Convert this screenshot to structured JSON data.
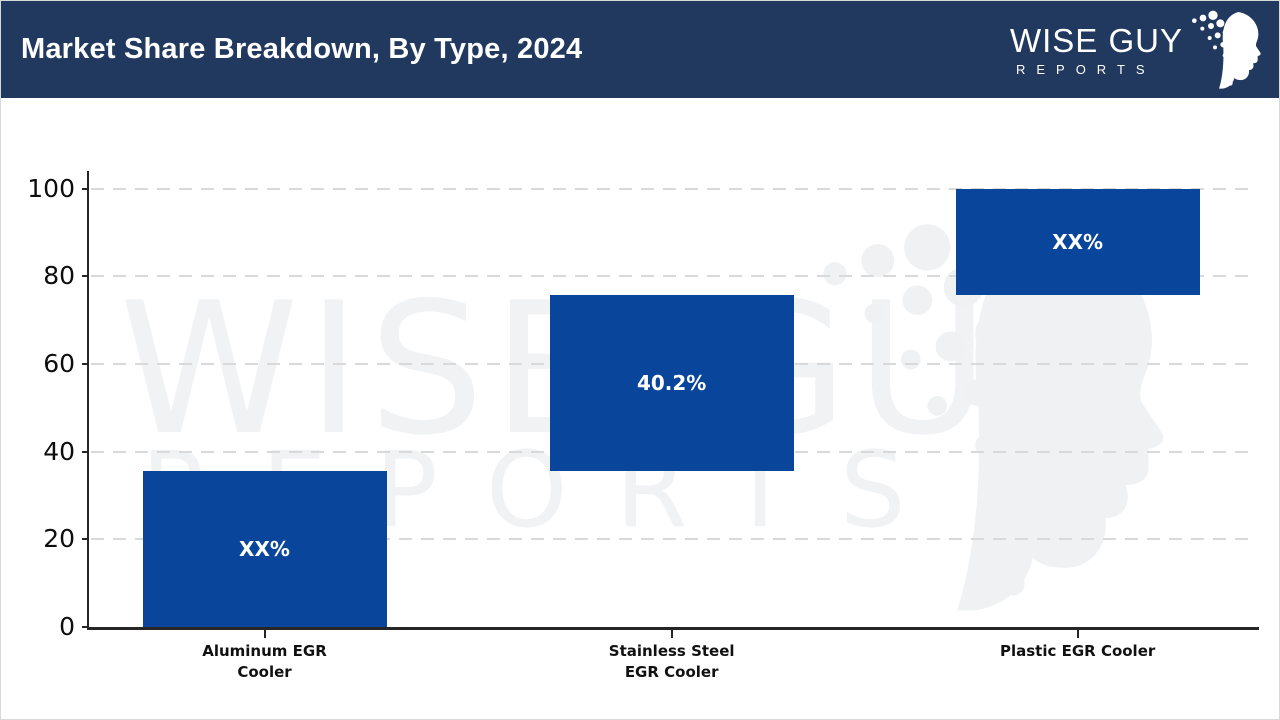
{
  "page": {
    "background": "#ffffff",
    "frame_color": "#d9d9d9"
  },
  "header": {
    "background": "#21395e",
    "title": "Market Share Breakdown, By Type, 2024",
    "logo": {
      "name": "WISE GUY",
      "sub": "REPORTS",
      "icon": "face-dots-icon"
    }
  },
  "watermark": {
    "name": "WISE GUY",
    "sub": "REPORTS",
    "icon": "face-dots-icon"
  },
  "chart_data": {
    "type": "bar",
    "variant": "floating-segment-waterfall",
    "title": "Market Share Breakdown, By Type, 2024",
    "categories": [
      "Aluminum EGR\nCooler",
      "Stainless Steel\nEGR Cooler",
      "Plastic EGR Cooler"
    ],
    "bars": [
      {
        "category": "Aluminum EGR Cooler",
        "start": 0,
        "end": 35.6,
        "label": "XX%"
      },
      {
        "category": "Stainless Steel EGR Cooler",
        "start": 35.6,
        "end": 75.8,
        "label": "40.2%"
      },
      {
        "category": "Plastic EGR Cooler",
        "start": 75.8,
        "end": 100,
        "label": "XX%"
      }
    ],
    "ylim": [
      0,
      104
    ],
    "yticks": [
      0,
      20,
      40,
      60,
      80,
      100
    ],
    "grid": {
      "axis": "y",
      "style": "dashed",
      "color": "#d9d9d9"
    },
    "bar_color": "#09459b",
    "bar_label_color": "#ffffff",
    "axis_color": "#262626",
    "legend": null
  }
}
